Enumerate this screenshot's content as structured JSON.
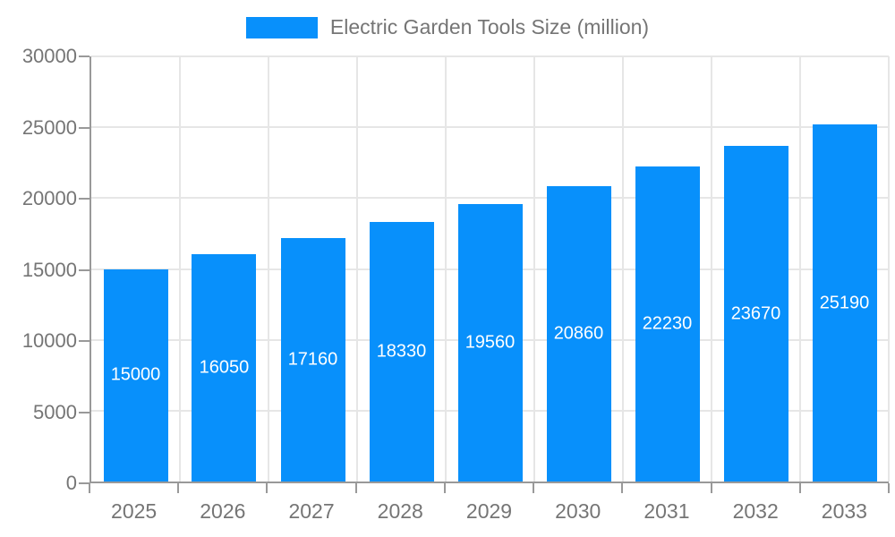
{
  "legend": {
    "label": "Electric Garden Tools Size (million)"
  },
  "colors": {
    "bar": "#0890FB",
    "axis": "#999999",
    "grid": "#e6e6e6",
    "label": "#757575",
    "value_label": "#ffffff",
    "background": "#ffffff"
  },
  "chart_data": {
    "type": "bar",
    "title": "Electric Garden Tools Size (million)",
    "categories": [
      "2025",
      "2026",
      "2027",
      "2028",
      "2029",
      "2030",
      "2031",
      "2032",
      "2033"
    ],
    "values": [
      15000,
      16050,
      17160,
      18330,
      19560,
      20860,
      22230,
      23670,
      25190
    ],
    "xlabel": "",
    "ylabel": "",
    "ylim": [
      0,
      30000
    ],
    "ytick_step": 5000,
    "ytick_labels": [
      "0",
      "5000",
      "10000",
      "15000",
      "20000",
      "25000",
      "30000"
    ],
    "grid": "both",
    "legend_position": "top-center",
    "value_labels": "inside-center-white"
  }
}
